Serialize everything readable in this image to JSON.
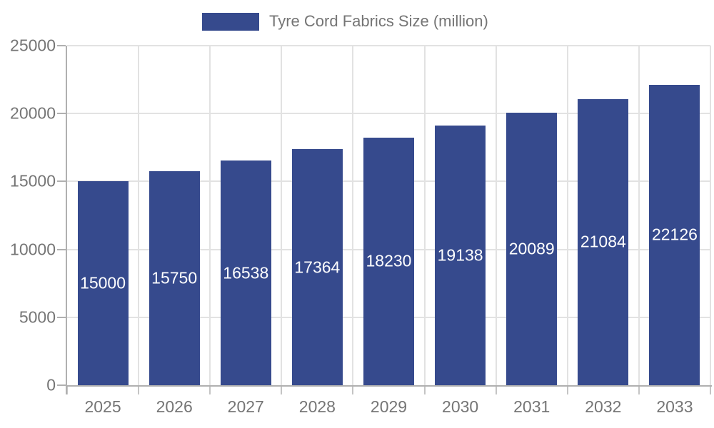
{
  "legend": {
    "label": "Tyre Cord Fabrics Size (million)"
  },
  "chart_data": {
    "type": "bar",
    "title": "Tyre Cord Fabrics Size (million)",
    "series_name": "Tyre Cord Fabrics Size (million)",
    "categories": [
      "2025",
      "2026",
      "2027",
      "2028",
      "2029",
      "2030",
      "2031",
      "2032",
      "2033"
    ],
    "values": [
      15000,
      15750,
      16538,
      17364,
      18230,
      19138,
      20089,
      21084,
      22126
    ],
    "xlabel": "",
    "ylabel": "",
    "ylim": [
      0,
      25000
    ],
    "yticks": [
      0,
      5000,
      10000,
      15000,
      20000,
      25000
    ],
    "grid": true,
    "legend_position": "top-center",
    "bar_labels_inside": true,
    "colors": {
      "bar": "#364A8D",
      "grid": "#e2e2e2",
      "axis": "#b0b0b0",
      "tick": "#c4c4c4",
      "text": "#757575",
      "value_label": "#ffffff",
      "background": "#ffffff"
    }
  }
}
